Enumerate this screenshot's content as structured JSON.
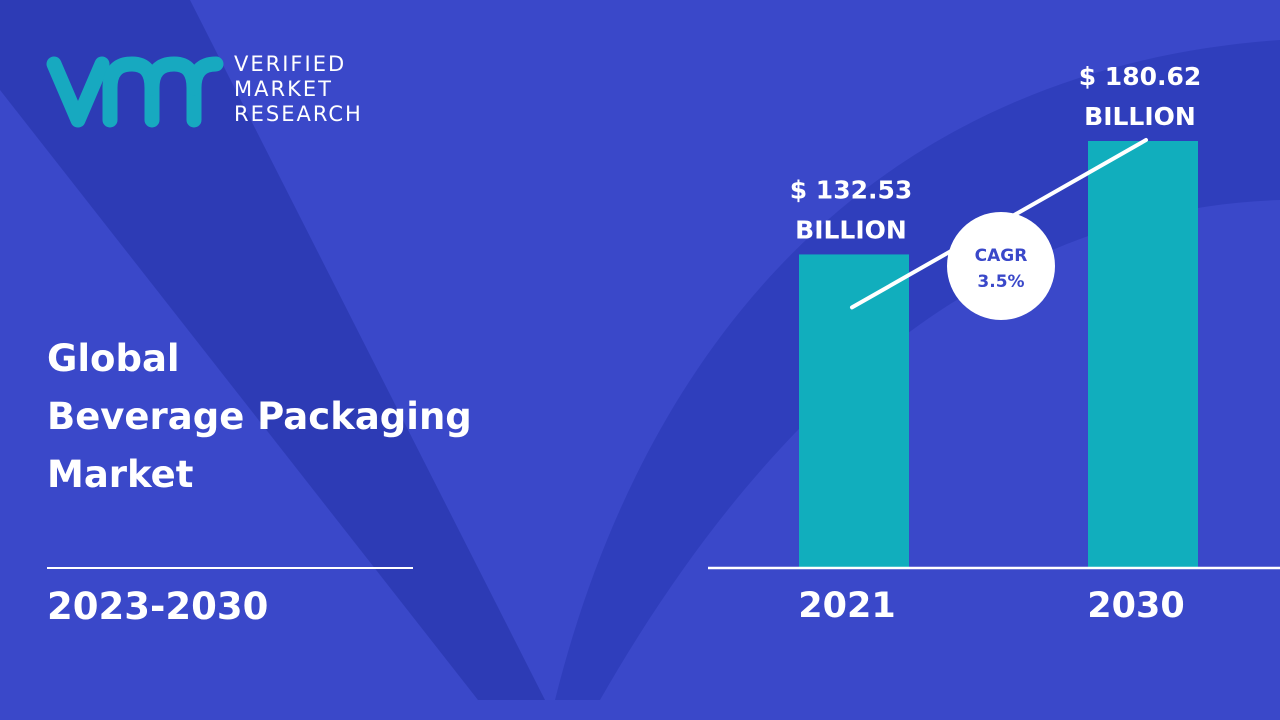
{
  "brand": {
    "name_lines": [
      "VERIFIED",
      "MARKET",
      "RESEARCH"
    ],
    "colors": {
      "teal": "#17a9c0",
      "background": "#3a48c9",
      "bar": "#11aebd"
    }
  },
  "title_lines": [
    "Global",
    "Beverage Packaging",
    "Market"
  ],
  "period": "2023-2030",
  "chart_data": {
    "type": "bar",
    "title": "",
    "xlabel": "",
    "ylabel": "",
    "categories": [
      "2021",
      "2030"
    ],
    "values": [
      132.53,
      180.62
    ],
    "value_labels": [
      [
        "$ 132.53",
        "BILLION"
      ],
      [
        "$ 180.62",
        "BILLION"
      ]
    ],
    "ylim": [
      0,
      180.62
    ],
    "grid": false,
    "legend": "none",
    "annotation": {
      "lines": [
        "CAGR",
        "3.5%"
      ]
    }
  }
}
